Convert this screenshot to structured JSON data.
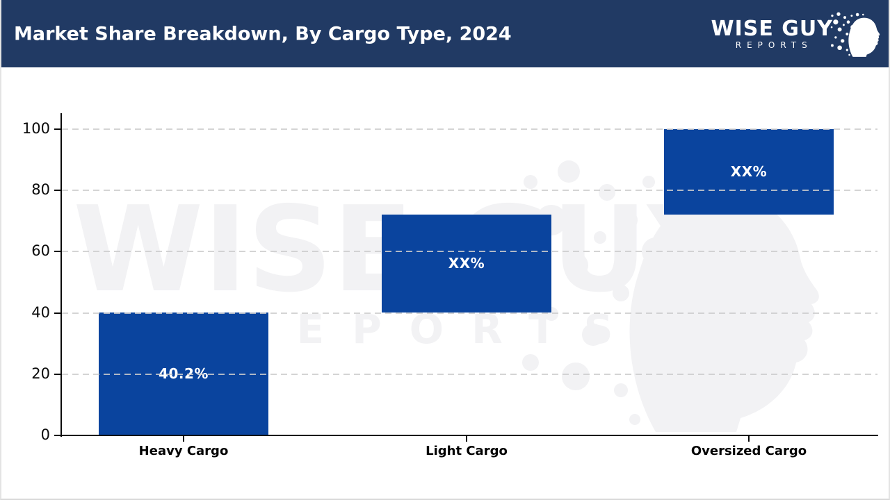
{
  "header": {
    "title": "Market Share Breakdown, By Cargo Type, 2024",
    "logo": {
      "line1": "WISE GUY",
      "line2": "REPORTS"
    }
  },
  "watermark": {
    "line1": "WISE GUY",
    "line2": "REPORTS"
  },
  "colors": {
    "header_bg": "#213A64",
    "bar": "#0A449E",
    "grid": "#cdcdcd",
    "axis": "#0a0a0a",
    "bar_label": "#ffffff",
    "watermark": "#f2f2f4"
  },
  "chart_data": {
    "type": "bar",
    "subtype": "waterfall",
    "title": "Market Share Breakdown, By Cargo Type, 2024",
    "categories": [
      "Heavy Cargo",
      "Light Cargo",
      "Oversized Cargo"
    ],
    "segments": [
      {
        "category": "Heavy Cargo",
        "start": 0,
        "end": 40.2,
        "label": "40.2%"
      },
      {
        "category": "Light Cargo",
        "start": 40.2,
        "end": 72.2,
        "label": "XX%"
      },
      {
        "category": "Oversized Cargo",
        "start": 72.2,
        "end": 100,
        "label": "XX%"
      }
    ],
    "yticks": [
      0,
      20,
      40,
      60,
      80,
      100
    ],
    "ylim": [
      0,
      105
    ],
    "xlabel": "",
    "ylabel": "",
    "grid": "horizontal-dashed",
    "legend": false
  }
}
